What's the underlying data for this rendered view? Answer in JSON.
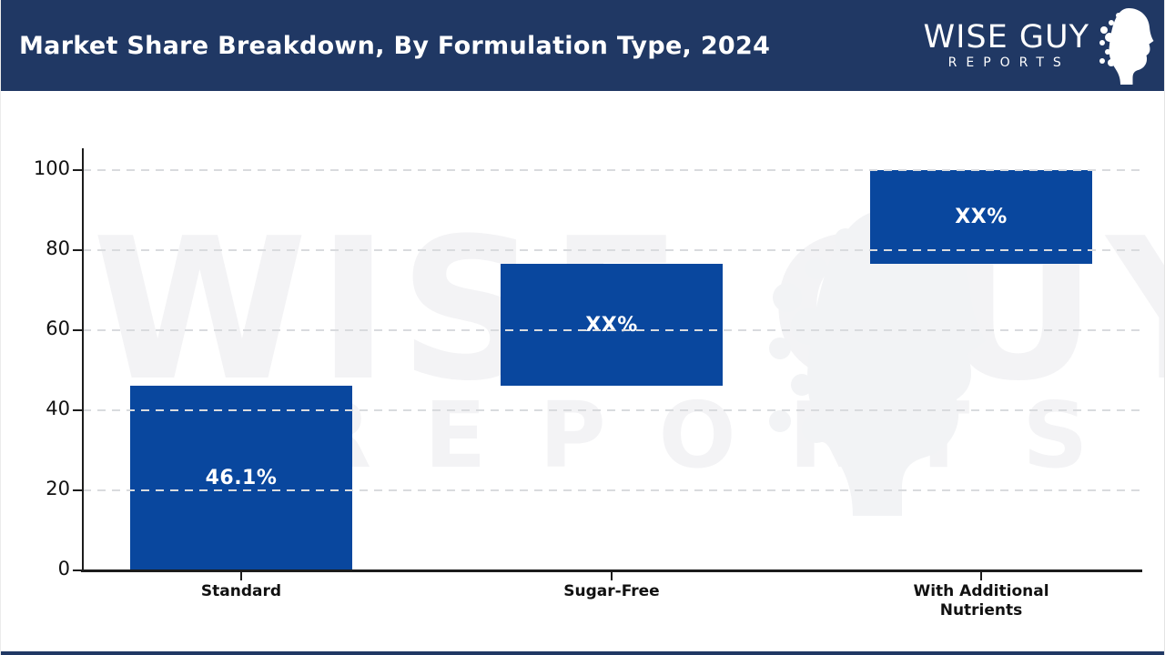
{
  "header": {
    "title": "Market Share Breakdown, By Formulation Type, 2024",
    "bg_color": "#203864",
    "logo": {
      "line1": "WISE GUY",
      "line2": "REPORTS"
    }
  },
  "watermark": {
    "line1": "WISE GUY",
    "line2": "REPORTS",
    "color": "#f3f3f5"
  },
  "chart_data": {
    "type": "bar",
    "subtype": "waterfall",
    "title": "Market Share Breakdown, By Formulation Type, 2024",
    "categories": [
      "Standard",
      "Sugar-Free",
      "With Additional Nutrients"
    ],
    "series": [
      {
        "name": "Market Share (%)",
        "segments": [
          {
            "category": "Standard",
            "start": 0,
            "end": 46.1,
            "label": "46.1%"
          },
          {
            "category": "Sugar-Free",
            "start": 46.1,
            "end": 76.6,
            "label": "XX%"
          },
          {
            "category": "With Additional Nutrients",
            "start": 76.6,
            "end": 100,
            "label": "XX%"
          }
        ]
      }
    ],
    "xlabel": "",
    "ylabel": "",
    "ylim": [
      0,
      100
    ],
    "yticks": [
      0,
      20,
      40,
      60,
      80,
      100
    ],
    "grid": "horizontal-dashed",
    "legend": "none",
    "bar_color": "#09479e",
    "bar_label_color": "#ffffff",
    "gridline_color": "#d9dbde",
    "axis_color": "#1c1c1c"
  }
}
